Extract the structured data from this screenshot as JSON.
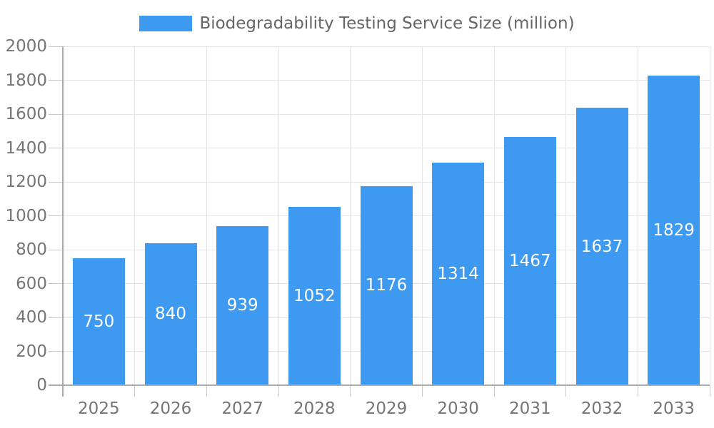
{
  "chart_data": {
    "type": "bar",
    "title": "Biodegradability Testing Service Size (million)",
    "series_name": "Biodegradability Testing Service Size (million)",
    "categories": [
      "2025",
      "2026",
      "2027",
      "2028",
      "2029",
      "2030",
      "2031",
      "2032",
      "2033"
    ],
    "values": [
      750,
      840,
      939,
      1052,
      1176,
      1314,
      1467,
      1637,
      1829
    ],
    "xlabel": "",
    "ylabel": "",
    "ylim": [
      0,
      2000
    ],
    "yticks": [
      0,
      200,
      400,
      600,
      800,
      1000,
      1200,
      1400,
      1600,
      1800,
      2000
    ],
    "grid": true,
    "legend_position": "top-center",
    "value_labels": "inside-center-white"
  },
  "colors": {
    "bar": "#3d9af0",
    "grid": "#e6e6e6",
    "tick": "#c9c9c9",
    "axis": "#ababab",
    "tick_label": "#757575",
    "title": "#666666",
    "value_label": "#ffffff",
    "background": "#ffffff"
  }
}
